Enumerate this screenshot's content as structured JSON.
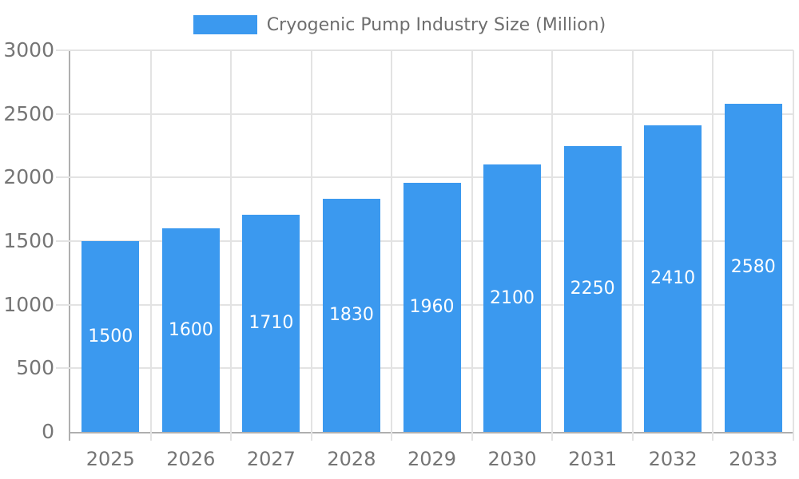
{
  "chart_data": {
    "type": "bar",
    "title": "Cryogenic Pump Industry Size (Million)",
    "categories": [
      "2025",
      "2026",
      "2027",
      "2028",
      "2029",
      "2030",
      "2031",
      "2032",
      "2033"
    ],
    "values": [
      1500,
      1600,
      1710,
      1830,
      1960,
      2100,
      2250,
      2410,
      2580
    ],
    "xlabel": "",
    "ylabel": "",
    "ylim": [
      0,
      3000
    ],
    "yticks": [
      0,
      500,
      1000,
      1500,
      2000,
      2500,
      3000
    ],
    "grid": "both",
    "legend_position": "top-center",
    "value_label_position": "inside-center",
    "colors": {
      "bar": "#3B99EF",
      "axis": "#AFAFAF",
      "gridline": "#E3E3E3",
      "axis_text": "#757575",
      "title_text": "#6E6E6E",
      "value_text": "#FFFFFF",
      "background": "#FFFFFF"
    }
  }
}
